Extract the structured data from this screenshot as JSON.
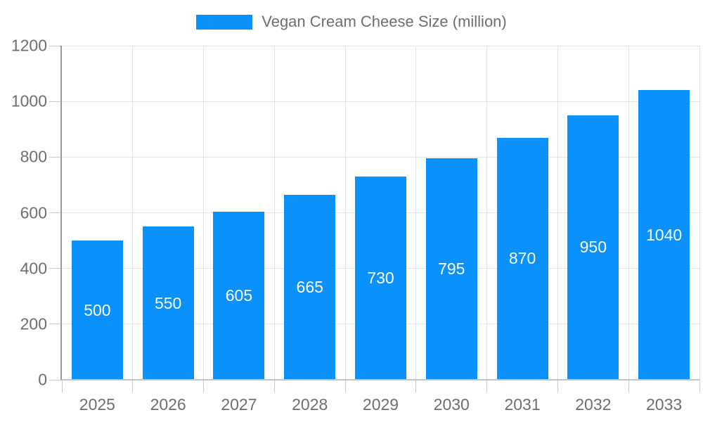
{
  "chart_data": {
    "type": "bar",
    "title": "Vegan Cream Cheese Size (million)",
    "legend": {
      "label": "Vegan Cream Cheese Size (million)",
      "position": "top-center"
    },
    "categories": [
      "2025",
      "2026",
      "2027",
      "2028",
      "2029",
      "2030",
      "2031",
      "2032",
      "2033"
    ],
    "values": [
      500,
      550,
      605,
      665,
      730,
      795,
      870,
      950,
      1040
    ],
    "xlabel": "",
    "ylabel": "",
    "ylim": [
      0,
      1200
    ],
    "yticks": [
      0,
      200,
      400,
      600,
      800,
      1000,
      1200
    ],
    "grid": true,
    "value_labels": "inside-center-white",
    "colors": {
      "bar": "#0a91fb",
      "bar_value_text": "#ffffff",
      "axis_text": "#6e6e6e",
      "legend_text": "#6e6e6e",
      "grid_line": "#e3e3e3",
      "y_axis_line": "#9a9a9a",
      "x_axis_line": "#c4c4c4",
      "tick_mark": "#c9c9c9",
      "background": "#ffffff"
    }
  }
}
